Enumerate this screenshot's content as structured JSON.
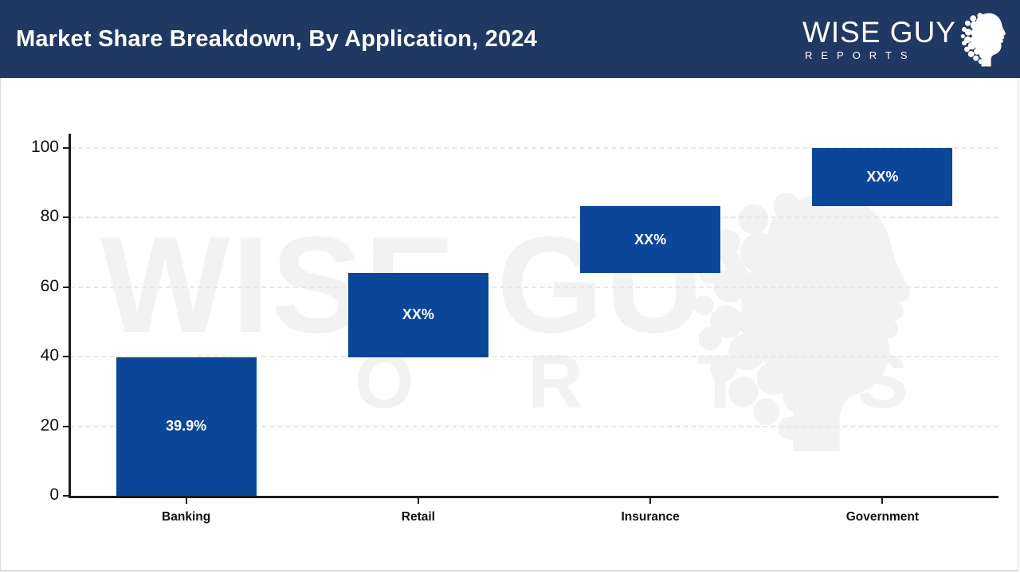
{
  "header": {
    "title": "Market Share Breakdown, By Application, 2024",
    "logo": {
      "line1": "WISE GUY",
      "line2": "REPORTS"
    }
  },
  "watermark": {
    "line1": "WISE GUY",
    "line2": "P O R T S"
  },
  "chart_data": {
    "type": "bar",
    "subtype": "waterfall",
    "title": "Market Share Breakdown, By Application, 2024",
    "categories": [
      "Banking",
      "Retail",
      "Insurance",
      "Government"
    ],
    "segments": [
      {
        "category": "Banking",
        "start": 0,
        "end": 39.9,
        "label": "39.9%"
      },
      {
        "category": "Retail",
        "start": 39.9,
        "end": 64.1,
        "label": "XX%"
      },
      {
        "category": "Insurance",
        "start": 64.1,
        "end": 83.2,
        "label": "XX%"
      },
      {
        "category": "Government",
        "start": 83.2,
        "end": 100,
        "label": "XX%"
      }
    ],
    "yticks": [
      0,
      20,
      40,
      60,
      80,
      100
    ],
    "ylim": [
      0,
      104
    ],
    "xlabel": "",
    "ylabel": "",
    "grid": true,
    "grid_style": "dashed",
    "legend": "none",
    "bar_color": "#0B4699",
    "bar_label_color": "#FFFFFF",
    "axis_color": "#1A1A1A",
    "header_color": "#1F3864",
    "watermark_color": "#F2F2F2"
  }
}
